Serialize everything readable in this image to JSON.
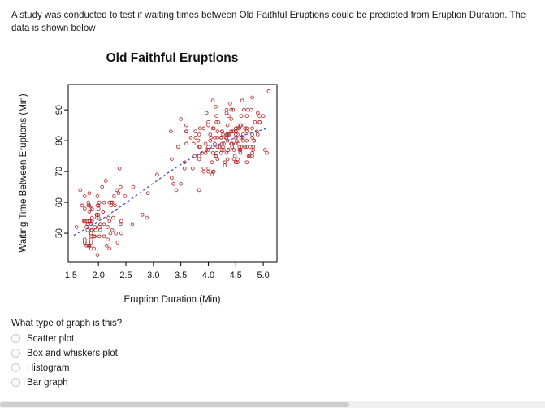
{
  "intro": "A study was conducted to test if waiting times between Old Faithful Eruptions could be predicted from Eruption Duration. The data is shown below",
  "question": {
    "text": "What type of graph is this?",
    "options": [
      "Scatter plot",
      "Box and whiskers plot",
      "Histogram",
      "Bar graph"
    ]
  },
  "chart_data": {
    "type": "scatter",
    "title": "Old Faithful Eruptions",
    "xlabel": "Eruption Duration (Min)",
    "ylabel": "Waiting Time Between Eruptions (Min)",
    "xlim": [
      1.45,
      5.25
    ],
    "ylim": [
      40.8,
      98.2
    ],
    "x_ticks": [
      "1.5",
      "2.0",
      "2.5",
      "3.0",
      "3.5",
      "4.0",
      "4.5",
      "5.0"
    ],
    "y_ticks": [
      50,
      60,
      70,
      80,
      90
    ],
    "grid": false,
    "legend": "none",
    "point_color": "#b22222",
    "trend_color": "#4040cc",
    "trend_style": "dashed",
    "points": [
      [
        3.6,
        79
      ],
      [
        1.8,
        54
      ],
      [
        3.333,
        74
      ],
      [
        2.283,
        62
      ],
      [
        4.533,
        85
      ],
      [
        2.883,
        55
      ],
      [
        4.7,
        88
      ],
      [
        3.6,
        85
      ],
      [
        1.95,
        51
      ],
      [
        4.35,
        85
      ],
      [
        1.833,
        54
      ],
      [
        3.917,
        84
      ],
      [
        4.2,
        78
      ],
      [
        1.75,
        47
      ],
      [
        4.7,
        83
      ],
      [
        2.167,
        52
      ],
      [
        1.75,
        62
      ],
      [
        4.8,
        84
      ],
      [
        1.6,
        52
      ],
      [
        4.25,
        79
      ],
      [
        1.8,
        51
      ],
      [
        1.75,
        47
      ],
      [
        3.45,
        78
      ],
      [
        3.067,
        69
      ],
      [
        4.533,
        74
      ],
      [
        3.6,
        83
      ],
      [
        1.967,
        55
      ],
      [
        4.083,
        76
      ],
      [
        3.85,
        78
      ],
      [
        4.433,
        79
      ],
      [
        4.3,
        73
      ],
      [
        4.467,
        77
      ],
      [
        3.367,
        66
      ],
      [
        4.033,
        80
      ],
      [
        3.833,
        74
      ],
      [
        2.017,
        52
      ],
      [
        1.867,
        48
      ],
      [
        4.833,
        80
      ],
      [
        1.833,
        59
      ],
      [
        4.783,
        90
      ],
      [
        4.35,
        80
      ],
      [
        1.883,
        58
      ],
      [
        4.567,
        84
      ],
      [
        1.75,
        58
      ],
      [
        4.533,
        73
      ],
      [
        3.317,
        83
      ],
      [
        3.833,
        64
      ],
      [
        2.1,
        53
      ],
      [
        4.633,
        82
      ],
      [
        2.0,
        59
      ],
      [
        4.8,
        75
      ],
      [
        4.716,
        90
      ],
      [
        1.833,
        54
      ],
      [
        4.833,
        80
      ],
      [
        1.733,
        54
      ],
      [
        4.883,
        83
      ],
      [
        3.717,
        71
      ],
      [
        1.667,
        64
      ],
      [
        4.567,
        77
      ],
      [
        4.317,
        81
      ],
      [
        2.233,
        59
      ],
      [
        4.5,
        84
      ],
      [
        1.75,
        48
      ],
      [
        4.8,
        82
      ],
      [
        1.817,
        60
      ],
      [
        4.4,
        92
      ],
      [
        4.167,
        78
      ],
      [
        4.7,
        78
      ],
      [
        2.067,
        65
      ],
      [
        4.7,
        73
      ],
      [
        4.033,
        82
      ],
      [
        1.967,
        56
      ],
      [
        4.5,
        79
      ],
      [
        4.0,
        71
      ],
      [
        1.983,
        62
      ],
      [
        5.067,
        76
      ],
      [
        2.017,
        60
      ],
      [
        4.567,
        78
      ],
      [
        3.883,
        76
      ],
      [
        3.6,
        83
      ],
      [
        4.133,
        75
      ],
      [
        4.333,
        82
      ],
      [
        4.1,
        70
      ],
      [
        2.633,
        65
      ],
      [
        4.067,
        73
      ],
      [
        4.933,
        88
      ],
      [
        3.95,
        76
      ],
      [
        4.517,
        80
      ],
      [
        2.167,
        48
      ],
      [
        4.0,
        86
      ],
      [
        2.2,
        60
      ],
      [
        4.333,
        90
      ],
      [
        1.867,
        50
      ],
      [
        4.817,
        78
      ],
      [
        1.833,
        63
      ],
      [
        4.3,
        72
      ],
      [
        4.667,
        84
      ],
      [
        3.75,
        75
      ],
      [
        1.867,
        51
      ],
      [
        4.9,
        82
      ],
      [
        2.483,
        62
      ],
      [
        4.367,
        88
      ],
      [
        2.1,
        49
      ],
      [
        4.5,
        83
      ],
      [
        4.05,
        81
      ],
      [
        1.867,
        47
      ],
      [
        4.7,
        84
      ],
      [
        1.783,
        52
      ],
      [
        4.85,
        86
      ],
      [
        3.683,
        81
      ],
      [
        4.733,
        75
      ],
      [
        2.3,
        59
      ],
      [
        4.9,
        89
      ],
      [
        4.417,
        79
      ],
      [
        1.7,
        59
      ],
      [
        4.633,
        81
      ],
      [
        2.317,
        50
      ],
      [
        4.6,
        85
      ],
      [
        1.817,
        59
      ],
      [
        4.417,
        87
      ],
      [
        2.617,
        53
      ],
      [
        4.067,
        69
      ],
      [
        4.25,
        77
      ],
      [
        1.967,
        56
      ],
      [
        4.6,
        88
      ],
      [
        3.767,
        81
      ],
      [
        1.917,
        45
      ],
      [
        4.5,
        82
      ],
      [
        2.267,
        55
      ],
      [
        4.65,
        90
      ],
      [
        1.867,
        45
      ],
      [
        4.167,
        83
      ],
      [
        2.8,
        56
      ],
      [
        4.333,
        89
      ],
      [
        1.833,
        46
      ],
      [
        4.383,
        82
      ],
      [
        1.883,
        51
      ],
      [
        4.933,
        86
      ],
      [
        2.033,
        53
      ],
      [
        3.733,
        79
      ],
      [
        4.233,
        81
      ],
      [
        2.233,
        60
      ],
      [
        4.533,
        82
      ],
      [
        4.817,
        77
      ],
      [
        4.333,
        76
      ],
      [
        1.983,
        59
      ],
      [
        4.633,
        80
      ],
      [
        2.017,
        49
      ],
      [
        5.1,
        96
      ],
      [
        1.8,
        53
      ],
      [
        5.033,
        77
      ],
      [
        4.0,
        77
      ],
      [
        2.4,
        65
      ],
      [
        4.6,
        81
      ],
      [
        3.567,
        71
      ],
      [
        4.0,
        70
      ],
      [
        4.5,
        81
      ],
      [
        4.083,
        93
      ],
      [
        1.8,
        53
      ],
      [
        3.967,
        89
      ],
      [
        2.2,
        45
      ],
      [
        4.15,
        86
      ],
      [
        2.0,
        58
      ],
      [
        3.833,
        78
      ],
      [
        3.5,
        66
      ],
      [
        4.583,
        76
      ],
      [
        2.367,
        63
      ],
      [
        5.0,
        88
      ],
      [
        1.933,
        52
      ],
      [
        4.617,
        93
      ],
      [
        1.917,
        49
      ],
      [
        2.083,
        57
      ],
      [
        4.583,
        77
      ],
      [
        3.333,
        68
      ],
      [
        4.167,
        81
      ],
      [
        4.333,
        81
      ],
      [
        4.5,
        73
      ],
      [
        2.417,
        50
      ],
      [
        4.0,
        85
      ],
      [
        4.167,
        74
      ],
      [
        1.883,
        55
      ],
      [
        4.583,
        77
      ],
      [
        4.25,
        83
      ],
      [
        3.767,
        83
      ],
      [
        2.033,
        51
      ],
      [
        4.433,
        78
      ],
      [
        4.083,
        84
      ],
      [
        1.833,
        46
      ],
      [
        4.417,
        83
      ],
      [
        2.183,
        55
      ],
      [
        4.8,
        81
      ],
      [
        1.833,
        57
      ],
      [
        4.8,
        76
      ],
      [
        4.1,
        84
      ],
      [
        3.966,
        77
      ],
      [
        4.233,
        81
      ],
      [
        3.5,
        87
      ],
      [
        4.366,
        77
      ],
      [
        2.25,
        51
      ],
      [
        4.667,
        78
      ],
      [
        2.1,
        60
      ],
      [
        4.35,
        82
      ],
      [
        4.133,
        91
      ],
      [
        1.867,
        53
      ],
      [
        4.6,
        78
      ],
      [
        1.783,
        46
      ],
      [
        4.367,
        77
      ],
      [
        3.85,
        84
      ],
      [
        1.933,
        49
      ],
      [
        4.5,
        83
      ],
      [
        2.383,
        71
      ],
      [
        4.7,
        80
      ],
      [
        1.867,
        49
      ],
      [
        3.833,
        75
      ],
      [
        3.417,
        64
      ],
      [
        4.233,
        76
      ],
      [
        2.4,
        53
      ],
      [
        4.8,
        94
      ],
      [
        2.0,
        55
      ],
      [
        4.15,
        76
      ],
      [
        1.867,
        50
      ],
      [
        4.267,
        82
      ],
      [
        1.75,
        54
      ],
      [
        4.483,
        75
      ],
      [
        4.0,
        78
      ],
      [
        4.117,
        79
      ],
      [
        4.083,
        78
      ],
      [
        4.267,
        78
      ],
      [
        3.917,
        70
      ],
      [
        4.55,
        79
      ],
      [
        4.083,
        70
      ],
      [
        2.417,
        54
      ],
      [
        4.183,
        86
      ],
      [
        2.217,
        50
      ],
      [
        4.45,
        90
      ],
      [
        1.883,
        54
      ],
      [
        1.85,
        54
      ],
      [
        4.283,
        77
      ],
      [
        3.95,
        79
      ],
      [
        2.333,
        64
      ],
      [
        4.15,
        75
      ],
      [
        2.35,
        47
      ],
      [
        4.933,
        86
      ],
      [
        2.9,
        63
      ],
      [
        4.583,
        85
      ],
      [
        3.833,
        82
      ],
      [
        2.083,
        57
      ],
      [
        4.367,
        82
      ],
      [
        2.133,
        67
      ],
      [
        4.35,
        74
      ],
      [
        2.2,
        54
      ],
      [
        4.45,
        83
      ],
      [
        3.567,
        73
      ],
      [
        4.5,
        73
      ],
      [
        4.15,
        88
      ],
      [
        3.817,
        80
      ],
      [
        3.917,
        71
      ],
      [
        4.45,
        83
      ],
      [
        2.0,
        56
      ],
      [
        4.283,
        79
      ],
      [
        4.767,
        78
      ],
      [
        4.533,
        84
      ],
      [
        1.85,
        58
      ],
      [
        4.25,
        83
      ],
      [
        1.983,
        43
      ],
      [
        2.25,
        60
      ],
      [
        4.75,
        75
      ],
      [
        4.117,
        81
      ],
      [
        2.15,
        46
      ],
      [
        4.417,
        90
      ],
      [
        1.817,
        46
      ],
      [
        4.467,
        74
      ]
    ],
    "trend": [
      [
        1.55,
        49.3
      ],
      [
        1.8,
        51.8
      ],
      [
        2.1,
        55.0
      ],
      [
        2.4,
        58.6
      ],
      [
        2.7,
        62.4
      ],
      [
        3.0,
        66.2
      ],
      [
        3.3,
        70.0
      ],
      [
        3.6,
        73.4
      ],
      [
        3.9,
        76.4
      ],
      [
        4.2,
        78.9
      ],
      [
        4.5,
        81.0
      ],
      [
        4.8,
        82.6
      ],
      [
        5.05,
        83.9
      ]
    ]
  }
}
